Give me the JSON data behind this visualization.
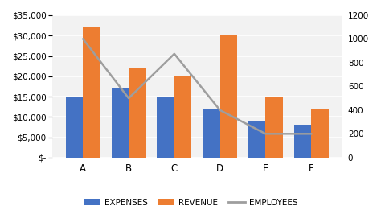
{
  "categories": [
    "A",
    "B",
    "C",
    "D",
    "E",
    "F"
  ],
  "expenses": [
    15000,
    17000,
    15000,
    12000,
    9000,
    8000
  ],
  "revenue": [
    32000,
    22000,
    20000,
    30000,
    15000,
    12000
  ],
  "employees": [
    1000,
    500,
    875,
    400,
    200,
    200
  ],
  "bar_color_expenses": "#4472c4",
  "bar_color_revenue": "#ed7d31",
  "line_color_employees": "#9e9e9e",
  "plot_bg_color": "#f2f2f2",
  "fig_bg_color": "#ffffff",
  "ylim_left": [
    0,
    35000
  ],
  "ylim_right": [
    0,
    1200
  ],
  "yticks_left": [
    0,
    5000,
    10000,
    15000,
    20000,
    25000,
    30000,
    35000
  ],
  "yticks_right": [
    0,
    200,
    400,
    600,
    800,
    1000,
    1200
  ],
  "legend_labels": [
    "EXPENSES",
    "REVENUE",
    "EMPLOYEES"
  ],
  "bar_width": 0.38,
  "figsize": [
    4.74,
    2.66
  ],
  "dpi": 100,
  "grid_color": "#ffffff",
  "grid_linewidth": 1.2
}
